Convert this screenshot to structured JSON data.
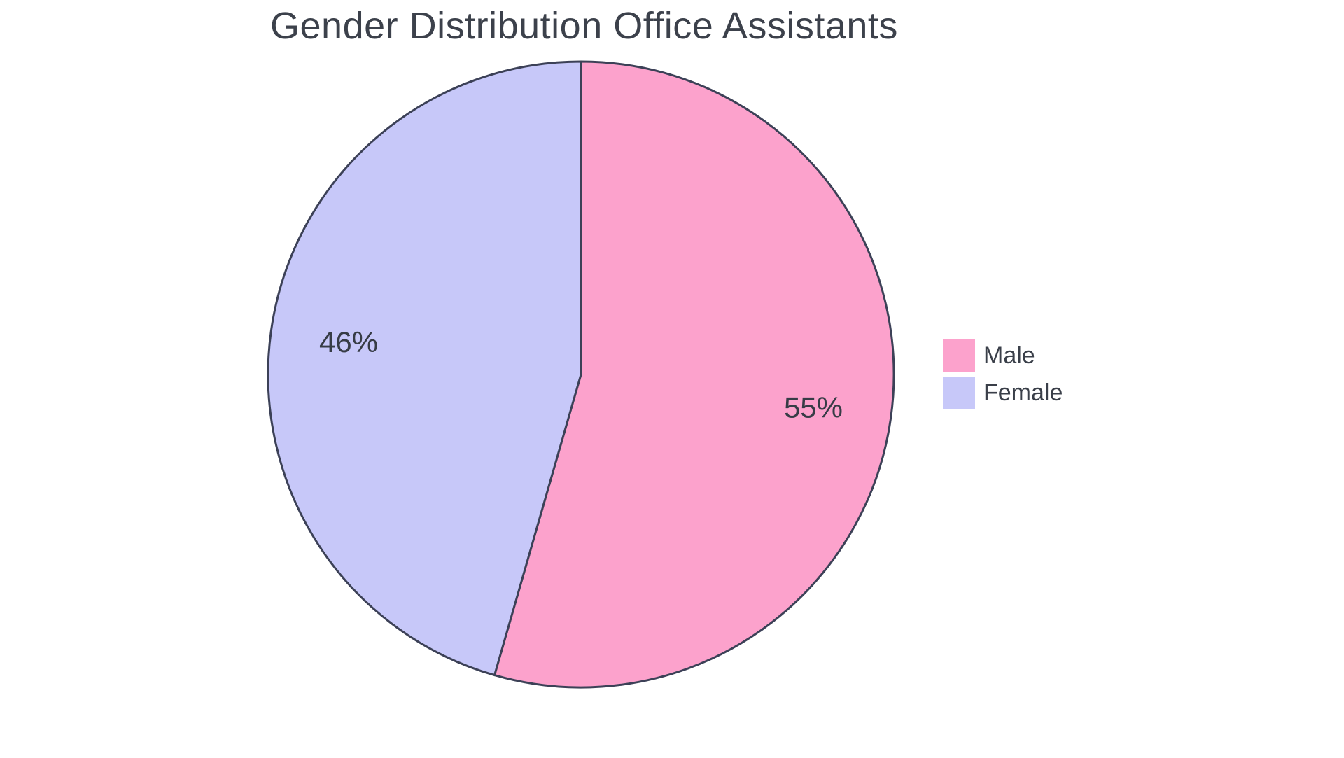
{
  "page": {
    "background": "#ffffff"
  },
  "chart_data": {
    "type": "pie",
    "title": "Gender Distribution Office Assistants",
    "series": [
      {
        "name": "Male",
        "value": 55,
        "label": "55%",
        "color": "#FCA2CC"
      },
      {
        "name": "Female",
        "value": 46,
        "label": "46%",
        "color": "#C7C8F9"
      }
    ],
    "start_angle_deg": 0,
    "direction": "clockwise",
    "slice_border_color": "#3C4157",
    "slice_border_width": 3,
    "label_color": "#373C46",
    "label_font_size": 42,
    "label_radius_fraction": 0.75,
    "legend_position": "right",
    "title_color": "#3C414B"
  }
}
